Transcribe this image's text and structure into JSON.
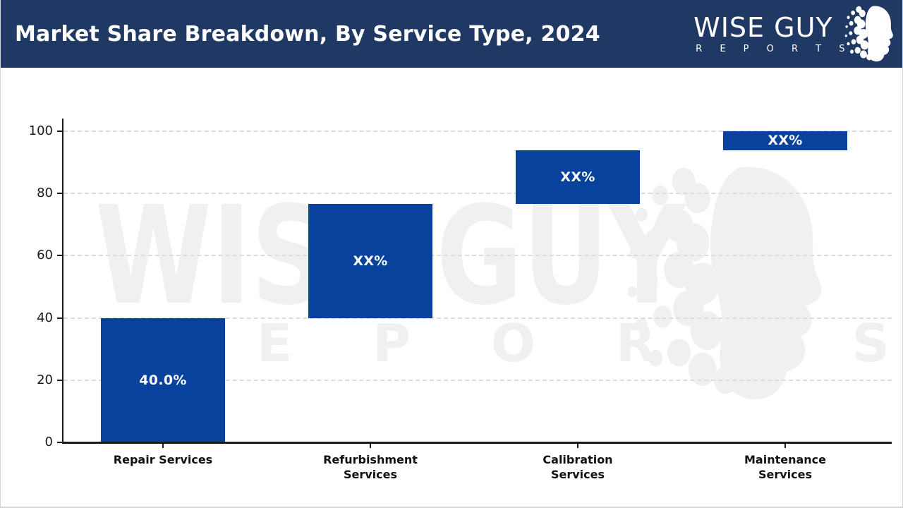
{
  "header": {
    "title": "Market Share Breakdown, By Service Type, 2024",
    "logo": {
      "wordmark": "WISE GUY",
      "subtext": "R E P O R T S"
    }
  },
  "watermark": {
    "wordmark": "WISE GUY",
    "subtext": "R E P O R T S"
  },
  "colors": {
    "header_bg": "#1f3864",
    "header_text": "#ffffff",
    "bar": "#08429c",
    "bar_label": "#ffffff",
    "gridline": "#dcdcdc",
    "axis": "#1a1a1a",
    "category_label": "#111111",
    "watermark": "#f0f0f2",
    "page_border": "#d6d6d6"
  },
  "chart_data": {
    "type": "bar",
    "subtype": "waterfall",
    "title": "Market Share Breakdown, By Service Type, 2024",
    "categories": [
      "Repair Services",
      "Refurbishment\nServices",
      "Calibration\nServices",
      "Maintenance\nServices"
    ],
    "segments": [
      {
        "category": "Repair Services",
        "label": "40.0%",
        "start": 0,
        "end": 40
      },
      {
        "category": "Refurbishment Services",
        "label": "XX%",
        "start": 40,
        "end": 76.6
      },
      {
        "category": "Calibration Services",
        "label": "XX%",
        "start": 76.6,
        "end": 93.9
      },
      {
        "category": "Maintenance Services",
        "label": "XX%",
        "start": 93.9,
        "end": 100
      }
    ],
    "yticks": [
      0,
      20,
      40,
      60,
      80,
      100
    ],
    "ylim": [
      0,
      100
    ],
    "xlabel": "",
    "ylabel": "",
    "grid": "horizontal-dashed",
    "legend": null
  }
}
